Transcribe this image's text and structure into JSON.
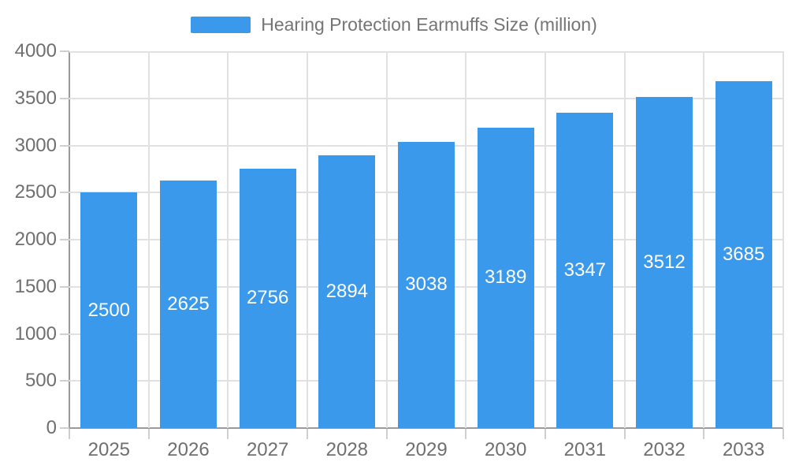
{
  "chart_data": {
    "type": "bar",
    "categories": [
      "2025",
      "2026",
      "2027",
      "2028",
      "2029",
      "2030",
      "2031",
      "2032",
      "2033"
    ],
    "series": [
      {
        "name": "Hearing Protection Earmuffs Size (million)",
        "values": [
          2500,
          2625,
          2756,
          2894,
          3038,
          3189,
          3347,
          3512,
          3685
        ]
      }
    ],
    "title": "",
    "xlabel": "",
    "ylabel": "",
    "ylim": [
      0,
      4000
    ],
    "yticks": [
      0,
      500,
      1000,
      1500,
      2000,
      2500,
      3000,
      3500,
      4000
    ],
    "grid": "both",
    "legend_position": "top",
    "bar_value_labels": "inside-center"
  },
  "colors": {
    "bar": "#3B99EC",
    "bar_label": "#FFFFFF",
    "axis_label": "#6F6F6F",
    "legend_text": "#757575",
    "gridline": "#E1E1E1",
    "axis_line": "#9A9A9A",
    "tick": "#CFCFCF",
    "background": "#FFFFFF"
  }
}
